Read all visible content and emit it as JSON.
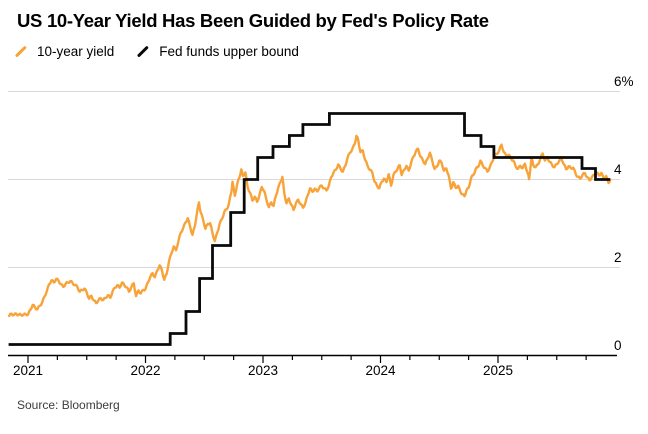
{
  "header": {
    "title": "US 10-Year Yield Has Been Guided by Fed's Policy Rate"
  },
  "legend": {
    "items": [
      {
        "label": "10-year yield",
        "color": "#F8A339",
        "swatch_icon": "diagonal-line"
      },
      {
        "label": "Fed funds upper bound",
        "color": "#0a0a0a",
        "swatch_icon": "diagonal-line"
      }
    ]
  },
  "footer": {
    "source": "Source: Bloomberg"
  },
  "chart_data": {
    "type": "line",
    "title": "US 10-Year Yield Has Been Guided by Fed's Policy Rate",
    "xlabel": "",
    "ylabel": "%",
    "ylim": [
      0,
      6
    ],
    "x_range": [
      2020.835,
      2025.996
    ],
    "grid": "horizontal",
    "legend_position": "top-left",
    "axis_color": "#000000",
    "gridline_color": "#d9d9d9",
    "y_ticks": [
      {
        "value": 6,
        "label": "6%"
      },
      {
        "value": 4,
        "label": "4"
      },
      {
        "value": 2,
        "label": "2"
      },
      {
        "value": 0,
        "label": "0"
      }
    ],
    "x_ticks": {
      "major": [
        2021,
        2022,
        2023,
        2024,
        2025
      ],
      "labels": [
        "2021",
        "2022",
        "2023",
        "2024",
        "2025"
      ],
      "minor_offsets": [
        0.25,
        0.5,
        0.75
      ]
    },
    "series": [
      {
        "name": "10-year yield",
        "type": "line",
        "color": "#F8A339",
        "units": "percent",
        "points": [
          [
            2020.84,
            0.9
          ],
          [
            2020.86,
            0.95
          ],
          [
            2020.88,
            0.92
          ],
          [
            2020.9,
            0.95
          ],
          [
            2020.92,
            0.92
          ],
          [
            2020.94,
            0.93
          ],
          [
            2020.96,
            0.92
          ],
          [
            2020.98,
            0.94
          ],
          [
            2021.0,
            0.93
          ],
          [
            2021.02,
            1.04
          ],
          [
            2021.04,
            1.15
          ],
          [
            2021.06,
            1.09
          ],
          [
            2021.08,
            1.05
          ],
          [
            2021.1,
            1.13
          ],
          [
            2021.12,
            1.2
          ],
          [
            2021.14,
            1.34
          ],
          [
            2021.16,
            1.46
          ],
          [
            2021.18,
            1.62
          ],
          [
            2021.2,
            1.71
          ],
          [
            2021.22,
            1.66
          ],
          [
            2021.24,
            1.74
          ],
          [
            2021.26,
            1.7
          ],
          [
            2021.28,
            1.62
          ],
          [
            2021.3,
            1.56
          ],
          [
            2021.32,
            1.63
          ],
          [
            2021.34,
            1.66
          ],
          [
            2021.36,
            1.69
          ],
          [
            2021.38,
            1.64
          ],
          [
            2021.4,
            1.6
          ],
          [
            2021.42,
            1.56
          ],
          [
            2021.44,
            1.45
          ],
          [
            2021.46,
            1.49
          ],
          [
            2021.48,
            1.52
          ],
          [
            2021.5,
            1.43
          ],
          [
            2021.52,
            1.29
          ],
          [
            2021.54,
            1.36
          ],
          [
            2021.56,
            1.25
          ],
          [
            2021.58,
            1.19
          ],
          [
            2021.6,
            1.26
          ],
          [
            2021.62,
            1.3
          ],
          [
            2021.64,
            1.26
          ],
          [
            2021.66,
            1.31
          ],
          [
            2021.68,
            1.37
          ],
          [
            2021.7,
            1.31
          ],
          [
            2021.72,
            1.46
          ],
          [
            2021.74,
            1.54
          ],
          [
            2021.76,
            1.6
          ],
          [
            2021.78,
            1.54
          ],
          [
            2021.8,
            1.66
          ],
          [
            2021.82,
            1.6
          ],
          [
            2021.84,
            1.55
          ],
          [
            2021.86,
            1.45
          ],
          [
            2021.88,
            1.56
          ],
          [
            2021.9,
            1.64
          ],
          [
            2021.92,
            1.35
          ],
          [
            2021.94,
            1.48
          ],
          [
            2021.96,
            1.41
          ],
          [
            2021.98,
            1.49
          ],
          [
            2022.0,
            1.51
          ],
          [
            2022.02,
            1.66
          ],
          [
            2022.04,
            1.78
          ],
          [
            2022.06,
            1.87
          ],
          [
            2022.08,
            1.78
          ],
          [
            2022.1,
            1.93
          ],
          [
            2022.12,
            2.05
          ],
          [
            2022.14,
            1.93
          ],
          [
            2022.16,
            1.72
          ],
          [
            2022.18,
            1.86
          ],
          [
            2022.2,
            2.14
          ],
          [
            2022.22,
            2.32
          ],
          [
            2022.24,
            2.48
          ],
          [
            2022.26,
            2.39
          ],
          [
            2022.28,
            2.6
          ],
          [
            2022.3,
            2.79
          ],
          [
            2022.32,
            2.89
          ],
          [
            2022.34,
            3.02
          ],
          [
            2022.36,
            3.12
          ],
          [
            2022.38,
            2.92
          ],
          [
            2022.4,
            2.74
          ],
          [
            2022.42,
            2.94
          ],
          [
            2022.44,
            3.28
          ],
          [
            2022.455,
            3.48
          ],
          [
            2022.47,
            3.25
          ],
          [
            2022.49,
            3.09
          ],
          [
            2022.51,
            2.88
          ],
          [
            2022.53,
            2.99
          ],
          [
            2022.55,
            3.01
          ],
          [
            2022.57,
            2.78
          ],
          [
            2022.59,
            2.6
          ],
          [
            2022.61,
            2.79
          ],
          [
            2022.63,
            2.98
          ],
          [
            2022.65,
            3.1
          ],
          [
            2022.67,
            3.26
          ],
          [
            2022.69,
            3.32
          ],
          [
            2022.71,
            3.45
          ],
          [
            2022.73,
            3.71
          ],
          [
            2022.74,
            3.95
          ],
          [
            2022.76,
            3.63
          ],
          [
            2022.78,
            3.89
          ],
          [
            2022.8,
            4.05
          ],
          [
            2022.815,
            4.23
          ],
          [
            2022.83,
            4.08
          ],
          [
            2022.85,
            4.16
          ],
          [
            2022.87,
            3.82
          ],
          [
            2022.89,
            3.7
          ],
          [
            2022.91,
            3.52
          ],
          [
            2022.93,
            3.61
          ],
          [
            2022.95,
            3.49
          ],
          [
            2022.97,
            3.65
          ],
          [
            2022.99,
            3.83
          ],
          [
            2023.01,
            3.74
          ],
          [
            2023.03,
            3.53
          ],
          [
            2023.05,
            3.37
          ],
          [
            2023.07,
            3.48
          ],
          [
            2023.09,
            3.4
          ],
          [
            2023.11,
            3.63
          ],
          [
            2023.13,
            3.82
          ],
          [
            2023.15,
            3.95
          ],
          [
            2023.165,
            4.06
          ],
          [
            2023.18,
            3.7
          ],
          [
            2023.2,
            3.46
          ],
          [
            2023.22,
            3.57
          ],
          [
            2023.24,
            3.43
          ],
          [
            2023.26,
            3.31
          ],
          [
            2023.28,
            3.46
          ],
          [
            2023.3,
            3.54
          ],
          [
            2023.32,
            3.44
          ],
          [
            2023.34,
            3.36
          ],
          [
            2023.36,
            3.46
          ],
          [
            2023.38,
            3.64
          ],
          [
            2023.4,
            3.8
          ],
          [
            2023.42,
            3.72
          ],
          [
            2023.44,
            3.79
          ],
          [
            2023.46,
            3.73
          ],
          [
            2023.48,
            3.82
          ],
          [
            2023.5,
            3.86
          ],
          [
            2023.52,
            3.8
          ],
          [
            2023.54,
            3.75
          ],
          [
            2023.56,
            3.86
          ],
          [
            2023.58,
            4.05
          ],
          [
            2023.6,
            4.16
          ],
          [
            2023.62,
            4.22
          ],
          [
            2023.64,
            4.34
          ],
          [
            2023.66,
            4.24
          ],
          [
            2023.68,
            4.18
          ],
          [
            2023.7,
            4.31
          ],
          [
            2023.72,
            4.5
          ],
          [
            2023.74,
            4.61
          ],
          [
            2023.76,
            4.69
          ],
          [
            2023.78,
            4.8
          ],
          [
            2023.795,
            4.99
          ],
          [
            2023.81,
            4.9
          ],
          [
            2023.83,
            4.62
          ],
          [
            2023.85,
            4.66
          ],
          [
            2023.87,
            4.44
          ],
          [
            2023.89,
            4.31
          ],
          [
            2023.91,
            4.22
          ],
          [
            2023.93,
            4.16
          ],
          [
            2023.95,
            3.95
          ],
          [
            2023.97,
            3.86
          ],
          [
            2023.99,
            3.8
          ],
          [
            2024.01,
            3.95
          ],
          [
            2024.03,
            4.02
          ],
          [
            2024.05,
            3.94
          ],
          [
            2024.07,
            4.12
          ],
          [
            2024.09,
            3.86
          ],
          [
            2024.11,
            4.1
          ],
          [
            2024.13,
            4.18
          ],
          [
            2024.15,
            4.28
          ],
          [
            2024.165,
            4.32
          ],
          [
            2024.18,
            4.1
          ],
          [
            2024.2,
            4.22
          ],
          [
            2024.22,
            4.31
          ],
          [
            2024.24,
            4.2
          ],
          [
            2024.26,
            4.37
          ],
          [
            2024.28,
            4.52
          ],
          [
            2024.3,
            4.63
          ],
          [
            2024.32,
            4.7
          ],
          [
            2024.34,
            4.52
          ],
          [
            2024.36,
            4.44
          ],
          [
            2024.38,
            4.35
          ],
          [
            2024.4,
            4.47
          ],
          [
            2024.42,
            4.61
          ],
          [
            2024.44,
            4.43
          ],
          [
            2024.46,
            4.24
          ],
          [
            2024.48,
            4.29
          ],
          [
            2024.5,
            4.43
          ],
          [
            2024.52,
            4.38
          ],
          [
            2024.54,
            4.2
          ],
          [
            2024.56,
            4.25
          ],
          [
            2024.58,
            4.1
          ],
          [
            2024.6,
            3.79
          ],
          [
            2024.62,
            3.94
          ],
          [
            2024.64,
            3.81
          ],
          [
            2024.66,
            3.86
          ],
          [
            2024.68,
            3.72
          ],
          [
            2024.7,
            3.66
          ],
          [
            2024.715,
            3.62
          ],
          [
            2024.73,
            3.74
          ],
          [
            2024.75,
            3.81
          ],
          [
            2024.77,
            4.03
          ],
          [
            2024.79,
            4.1
          ],
          [
            2024.81,
            4.24
          ],
          [
            2024.83,
            4.28
          ],
          [
            2024.85,
            4.43
          ],
          [
            2024.87,
            4.32
          ],
          [
            2024.89,
            4.26
          ],
          [
            2024.91,
            4.18
          ],
          [
            2024.93,
            4.28
          ],
          [
            2024.95,
            4.4
          ],
          [
            2024.97,
            4.54
          ],
          [
            2024.99,
            4.58
          ],
          [
            2025.01,
            4.66
          ],
          [
            2025.03,
            4.79
          ],
          [
            2025.05,
            4.62
          ],
          [
            2025.07,
            4.54
          ],
          [
            2025.09,
            4.56
          ],
          [
            2025.11,
            4.48
          ],
          [
            2025.13,
            4.43
          ],
          [
            2025.15,
            4.3
          ],
          [
            2025.17,
            4.24
          ],
          [
            2025.19,
            4.31
          ],
          [
            2025.21,
            4.26
          ],
          [
            2025.23,
            4.36
          ],
          [
            2025.25,
            4.16
          ],
          [
            2025.265,
            4.01
          ],
          [
            2025.285,
            4.49
          ],
          [
            2025.3,
            4.33
          ],
          [
            2025.32,
            4.28
          ],
          [
            2025.34,
            4.34
          ],
          [
            2025.36,
            4.47
          ],
          [
            2025.38,
            4.59
          ],
          [
            2025.4,
            4.43
          ],
          [
            2025.42,
            4.51
          ],
          [
            2025.44,
            4.4
          ],
          [
            2025.46,
            4.33
          ],
          [
            2025.48,
            4.28
          ],
          [
            2025.5,
            4.35
          ],
          [
            2025.52,
            4.42
          ],
          [
            2025.54,
            4.48
          ],
          [
            2025.56,
            4.35
          ],
          [
            2025.58,
            4.23
          ],
          [
            2025.6,
            4.3
          ],
          [
            2025.62,
            4.26
          ],
          [
            2025.64,
            4.27
          ],
          [
            2025.66,
            4.13
          ],
          [
            2025.68,
            4.06
          ],
          [
            2025.7,
            4.02
          ],
          [
            2025.72,
            4.11
          ],
          [
            2025.74,
            4.14
          ],
          [
            2025.76,
            4.05
          ],
          [
            2025.78,
            3.98
          ],
          [
            2025.8,
            4.06
          ],
          [
            2025.82,
            4.1
          ],
          [
            2025.84,
            4.16
          ],
          [
            2025.86,
            4.09
          ],
          [
            2025.88,
            4.15
          ],
          [
            2025.9,
            4.01
          ],
          [
            2025.92,
            4.08
          ],
          [
            2025.94,
            3.92
          ],
          [
            2025.955,
            4.0
          ]
        ]
      },
      {
        "name": "Fed funds upper bound",
        "type": "step",
        "color": "#0a0a0a",
        "units": "percent",
        "points": [
          [
            2020.835,
            0.25
          ],
          [
            2022.21,
            0.5
          ],
          [
            2022.345,
            1.0
          ],
          [
            2022.46,
            1.75
          ],
          [
            2022.57,
            2.5
          ],
          [
            2022.725,
            3.25
          ],
          [
            2022.84,
            4.0
          ],
          [
            2022.955,
            4.5
          ],
          [
            2023.085,
            4.75
          ],
          [
            2023.225,
            5.0
          ],
          [
            2023.34,
            5.25
          ],
          [
            2023.565,
            5.5
          ],
          [
            2024.715,
            5.0
          ],
          [
            2024.855,
            4.75
          ],
          [
            2024.965,
            4.5
          ],
          [
            2025.715,
            4.25
          ],
          [
            2025.83,
            4.0
          ]
        ],
        "end": 2025.955
      }
    ]
  }
}
